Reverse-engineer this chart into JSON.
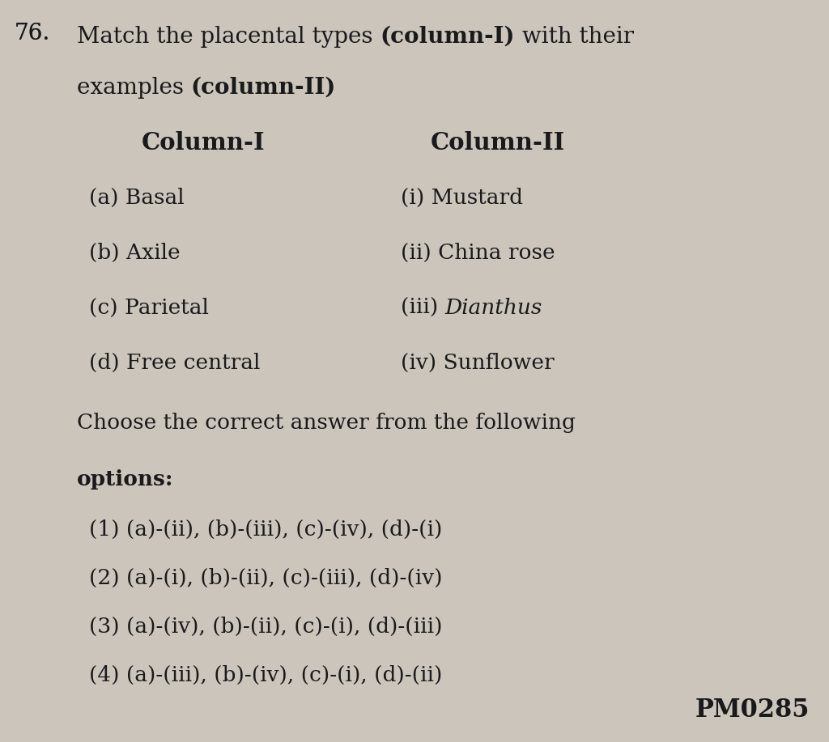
{
  "background_color": "#ccc5bc",
  "text_color": "#1a1a1a",
  "question_number": "76.",
  "q_line1_plain1": "Match the placental types ",
  "q_line1_bold": "(column-I)",
  "q_line1_plain2": " with their",
  "q_line2_plain": "examples ",
  "q_line2_bold": "(column-II)",
  "col1_header": "Column-I",
  "col2_header": "Column-II",
  "col1_items": [
    "(a) Basal",
    "(b) Axile",
    "(c) Parietal",
    "(d) Free central"
  ],
  "col2_items_prefix": [
    "(i) Mustard",
    "(ii) China rose",
    "(iii) ",
    "(iv) Sunflower"
  ],
  "col2_italic_word": "Dianthus",
  "col2_italic_index": 2,
  "instruction1": "Choose the correct answer from the following",
  "instruction2_bold": "options:",
  "options": [
    "(1) (a)-(ii), (b)-(iii), (c)-(iv), (d)-(i)",
    "(2) (a)-(i), (b)-(ii), (c)-(iii), (d)-(iv)",
    "(3) (a)-(iv), (b)-(ii), (c)-(i), (d)-(iii)",
    "(4) (a)-(iii), (b)-(iv), (c)-(i), (d)-(ii)"
  ],
  "code": "PM0285",
  "fs_main": 20,
  "fs_header": 21,
  "fs_item": 19,
  "fs_option": 19,
  "fs_code": 22
}
